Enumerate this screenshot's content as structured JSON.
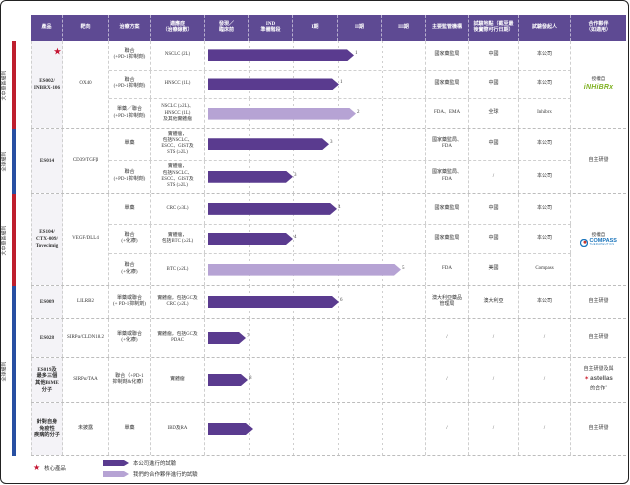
{
  "colors": {
    "header_bg": "#5E4A93",
    "bar_self": "#5A3B8F",
    "bar_partner": "#B6A3D4",
    "rights_red": "#BE1E2D",
    "rights_blue": "#274FA2",
    "star_red": "#C41230",
    "grid": "#cfcfcf",
    "product_col_bg": "#f4f3f7",
    "inhibrx_green": "#7FB122",
    "compass_blue": "#1B75BC",
    "astellas_red": "#CC1F2F",
    "text": "#333333"
  },
  "header": {
    "columns": [
      "產品",
      "靶向",
      "治療方案",
      "適應症\n（治療線數）",
      "發現／\n臨床前",
      "IND\n準備階段",
      "I期",
      "II期",
      "III期",
      "主要監管機構",
      "試驗地點（截至最\n後實際可行日期）",
      "試驗發起人",
      "合作夥伴\n（如適用）"
    ]
  },
  "sidebar": {
    "segments": [
      {
        "label": "大中華區權利",
        "color_key": "red"
      },
      {
        "label": "全球權利",
        "color_key": "blue"
      },
      {
        "label": "大中華區權利",
        "color_key": "red"
      },
      {
        "label": "全球權利",
        "color_key": "blue"
      }
    ]
  },
  "groups": [
    {
      "product": "ES002/\nINBRX-106",
      "star": true,
      "target": "OX40",
      "partner": {
        "kind": "inhibrx",
        "prefix": "授權自",
        "logo_text": "iNHiBRx"
      },
      "rows": [
        {
          "regimen": "聯合\n(+PD-1抑制劑)",
          "indication": "NSCLC (2L)",
          "bar_len": 146,
          "bar_style": "self",
          "footnote": "1",
          "regulator": "國家藥監局",
          "location": "中國",
          "sponsor": "本公司"
        },
        {
          "regimen": "聯合\n(+PD-1抑制劑)",
          "indication": "HNSCC (1L)",
          "bar_len": 131,
          "bar_style": "self",
          "footnote": "1",
          "regulator": "國家藥監局",
          "location": "中國",
          "sponsor": "本公司"
        },
        {
          "regimen": "單藥／聯合\n(+PD-1抑制劑)",
          "indication": "NSCLC (≥2L)、\nHNSCC (1L)\n及其他實體瘤",
          "bar_len": 148,
          "bar_style": "partner",
          "footnote": "2",
          "regulator": "FDA、EMA",
          "location": "全球",
          "sponsor": "Inhibrx"
        }
      ]
    },
    {
      "product": "ES014",
      "star": false,
      "target": "CD39/TGFβ",
      "partner": {
        "kind": "text",
        "text": "自主研發"
      },
      "rows": [
        {
          "regimen": "單藥",
          "indication": "實體瘤，\n包括NSCLC、\nESCC、GIST及\nSTS (≥2L)",
          "bar_len": 121,
          "bar_style": "self",
          "footnote": "3",
          "regulator": "國家藥監局、\nFDA",
          "location": "中國",
          "sponsor": "本公司"
        },
        {
          "regimen": "聯合\n(+PD-1抑制劑)",
          "indication": "實體瘤，\n包括NSCLC、\nESCC、GIST及\nSTS (≥2L)",
          "bar_len": 85,
          "bar_style": "self",
          "footnote": "3",
          "regulator": "國家藥監局、\nFDA",
          "location": "/",
          "sponsor": "本公司"
        }
      ]
    },
    {
      "product": "ES104/\nCTX-009/\nTovecimig",
      "star": false,
      "target": "VEGF/DLL4",
      "partner": {
        "kind": "compass",
        "prefix": "授權自",
        "logo_text": "COMPASS",
        "logo_sub": "THERAPEUTICS"
      },
      "rows": [
        {
          "regimen": "單藥",
          "indication": "CRC (≥3L)",
          "bar_len": 129,
          "bar_style": "self",
          "footnote": "4",
          "regulator": "國家藥監局",
          "location": "中國",
          "sponsor": "本公司"
        },
        {
          "regimen": "聯合\n(+化療)",
          "indication": "實體瘤，\n包括BTC (≥2L)",
          "bar_len": 85,
          "bar_style": "self",
          "footnote": "4",
          "regulator": "國家藥監局",
          "location": "中國",
          "sponsor": "本公司"
        },
        {
          "regimen": "聯合\n(+化療)",
          "indication": "BTC (≥2L)",
          "bar_len": 193,
          "bar_style": "partner",
          "footnote": "5",
          "regulator": "FDA",
          "location": "美國",
          "sponsor": "Compass"
        }
      ]
    },
    {
      "product": "ES009",
      "star": false,
      "target": "LILRB2",
      "partner": {
        "kind": "text",
        "text": "自主研發"
      },
      "rows": [
        {
          "regimen": "單藥或聯合\n(+ PD-1抑制劑)",
          "indication": "實體瘤，包括GC及\nCRC (≥2L)",
          "bar_len": 131,
          "bar_style": "self",
          "footnote": "6",
          "regulator": "澳大利亞藥品\n管理局",
          "location": "澳大利亞",
          "sponsor": "本公司"
        }
      ]
    },
    {
      "product": "ES028",
      "star": false,
      "target": "SIRPα/CLDN18.2",
      "partner": {
        "kind": "text",
        "text": "自主研發"
      },
      "rows": [
        {
          "regimen": "單藥或聯合\n(+化療)",
          "indication": "實體瘤，包括GC及\nPDAC",
          "bar_len": 38,
          "bar_style": "self",
          "footnote": "7",
          "regulator": "/",
          "location": "/",
          "sponsor": "/"
        }
      ]
    },
    {
      "product": "ES019及\n最多三個\n其他BiME\n分子",
      "star": false,
      "target": "SIRPα/TAA",
      "partner": {
        "kind": "astellas",
        "line1": "自主研發及與",
        "logo_text": "astellas",
        "line3": "的合作",
        "sup": "1"
      },
      "rows": [
        {
          "regimen": "聯合（+PD-1\n抑制劑&化療）",
          "indication": "實體瘤",
          "bar_len": 40,
          "bar_style": "self",
          "footnote": "8",
          "regulator": "/",
          "location": "/",
          "sponsor": "/"
        }
      ]
    },
    {
      "product": "針對自身\n免疫性\n疾病的分子",
      "star": false,
      "target": "未披露",
      "partner": {
        "kind": "text",
        "text": "自主研發"
      },
      "rows": [
        {
          "regimen": "單藥",
          "indication": "IBD及RA",
          "bar_len": 45,
          "bar_style": "self",
          "footnote": "",
          "regulator": "/",
          "location": "/",
          "sponsor": "/"
        }
      ]
    }
  ],
  "legend": {
    "star_label": "核心產品",
    "self_label": "本公司進行的試驗",
    "partner_label": "我們的合作夥伴進行的試驗"
  },
  "chart_data": {
    "type": "bar",
    "subtype": "pipeline-gantt",
    "phases": [
      "發現／臨床前",
      "IND準備階段",
      "I期",
      "II期",
      "III期"
    ],
    "phase_scale_note": "progress_0to5 = number of phase columns spanned by each arrow bar",
    "rows": [
      {
        "product": "ES002/INBRX-106",
        "indication": "NSCLC (2L)",
        "progress_0to5": 3.3,
        "trial_by": "本公司",
        "footnote": "1"
      },
      {
        "product": "ES002/INBRX-106",
        "indication": "HNSCC (1L)",
        "progress_0to5": 3.0,
        "trial_by": "本公司",
        "footnote": "1"
      },
      {
        "product": "ES002/INBRX-106",
        "indication": "NSCLC (≥2L)、HNSCC (1L)及其他實體瘤",
        "progress_0to5": 3.4,
        "trial_by": "合作夥伴",
        "footnote": "2"
      },
      {
        "product": "ES014",
        "indication": "實體瘤，包括NSCLC、ESCC、GIST及STS (≥2L) 單藥",
        "progress_0to5": 2.8,
        "trial_by": "本公司",
        "footnote": "3"
      },
      {
        "product": "ES014",
        "indication": "實體瘤，包括NSCLC、ESCC、GIST及STS (≥2L) 聯合",
        "progress_0to5": 2.0,
        "trial_by": "本公司",
        "footnote": "3"
      },
      {
        "product": "ES104/CTX-009/Tovecimig",
        "indication": "CRC (≥3L)",
        "progress_0to5": 2.95,
        "trial_by": "本公司",
        "footnote": "4"
      },
      {
        "product": "ES104/CTX-009/Tovecimig",
        "indication": "實體瘤，包括BTC (≥2L)",
        "progress_0to5": 2.0,
        "trial_by": "本公司",
        "footnote": "4"
      },
      {
        "product": "ES104/CTX-009/Tovecimig",
        "indication": "BTC (≥2L)",
        "progress_0to5": 4.4,
        "trial_by": "合作夥伴",
        "footnote": "5"
      },
      {
        "product": "ES009",
        "indication": "實體瘤，包括GC及CRC (≥2L)",
        "progress_0to5": 3.0,
        "trial_by": "本公司",
        "footnote": "6"
      },
      {
        "product": "ES028",
        "indication": "實體瘤，包括GC及PDAC",
        "progress_0to5": 0.95,
        "trial_by": "本公司",
        "footnote": "7"
      },
      {
        "product": "ES019及最多三個其他BiME分子",
        "indication": "實體瘤",
        "progress_0to5": 1.0,
        "trial_by": "本公司",
        "footnote": "8"
      },
      {
        "product": "針對自身免疫性疾病的分子",
        "indication": "IBD及RA",
        "progress_0to5": 1.1,
        "trial_by": "本公司",
        "footnote": ""
      }
    ]
  }
}
